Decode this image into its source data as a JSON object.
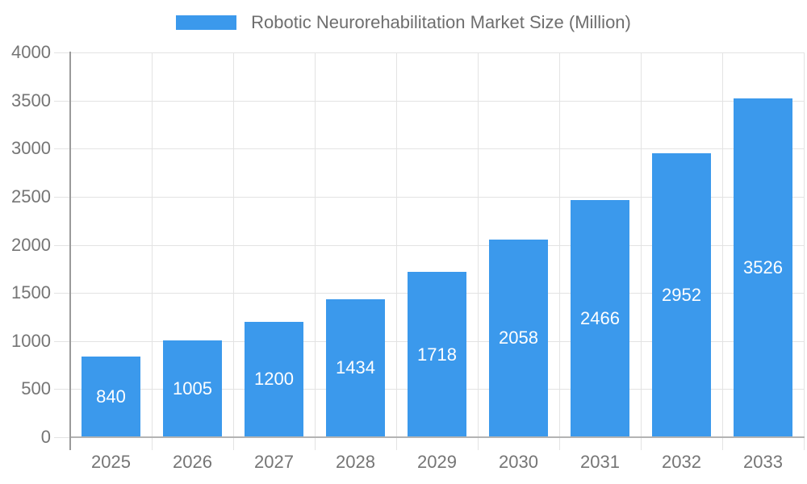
{
  "legend": {
    "label": "Robotic Neurorehabilitation Market Size (Million)"
  },
  "colors": {
    "bar": "#3b99ec",
    "value_label": "#ffffff",
    "axis_line": "#9a9a9a",
    "baseline": "#b3b3b3",
    "gridline": "#e3e3e3",
    "axis_text": "#757575",
    "legend_text": "#6e6e6e",
    "background": "#ffffff"
  },
  "chart_data": {
    "type": "bar",
    "title": "Robotic Neurorehabilitation Market Size (Million)",
    "categories": [
      "2025",
      "2026",
      "2027",
      "2028",
      "2029",
      "2030",
      "2031",
      "2032",
      "2033"
    ],
    "values": [
      840,
      1005,
      1200,
      1434,
      1718,
      2058,
      2466,
      2952,
      3526
    ],
    "value_labels": [
      "840",
      "1005",
      "1200",
      "1434",
      "1718",
      "2058",
      "2466",
      "2952",
      "3526"
    ],
    "xlabel": "",
    "ylabel": "",
    "ylim": [
      0,
      4000
    ],
    "yticks": [
      0,
      500,
      1000,
      1500,
      2000,
      2500,
      3000,
      3500,
      4000
    ],
    "grid": "both",
    "legend_position": "top",
    "bar_color": "#3b99ec",
    "value_label_position": "inside-center"
  }
}
